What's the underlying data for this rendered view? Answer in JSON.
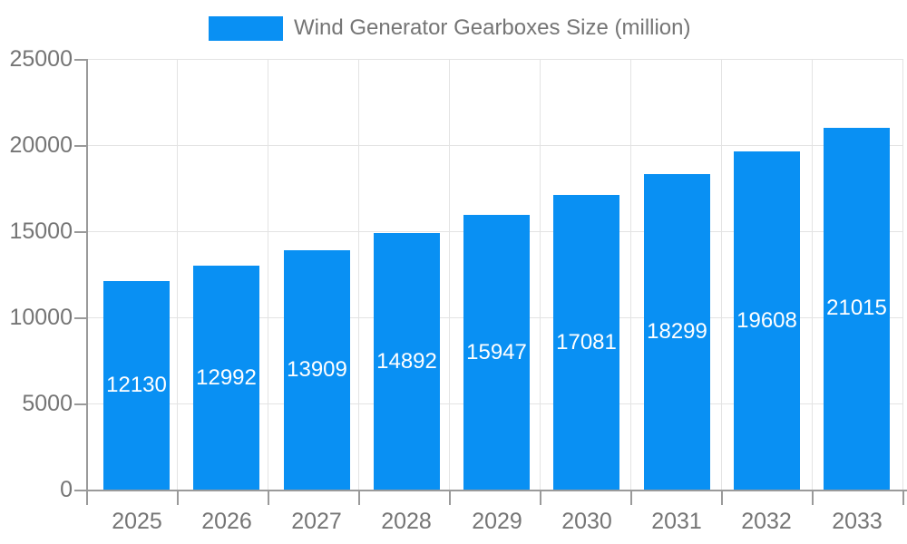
{
  "chart_data": {
    "type": "bar",
    "title": "Wind Generator Gearboxes Size (million)",
    "categories": [
      "2025",
      "2026",
      "2027",
      "2028",
      "2029",
      "2030",
      "2031",
      "2032",
      "2033"
    ],
    "series": [
      {
        "name": "Wind Generator Gearboxes Size (million)",
        "values": [
          12130,
          12992,
          13909,
          14892,
          15947,
          17081,
          18299,
          19608,
          21015
        ],
        "color": "#0990f3"
      }
    ],
    "xlabel": "",
    "ylabel": "",
    "ylim": [
      0,
      25000
    ],
    "yticks": [
      0,
      5000,
      10000,
      15000,
      20000,
      25000
    ],
    "grid": "horizontal-and-vertical",
    "legend_position": "top-center",
    "value_label_position": "inside-center",
    "colors": {
      "bar": "#0990f3",
      "gridline": "#e3e3e3",
      "axis": "#9a9a9a",
      "tick_text": "#757575",
      "value_label_text": "#ffffff",
      "background": "#ffffff"
    }
  }
}
